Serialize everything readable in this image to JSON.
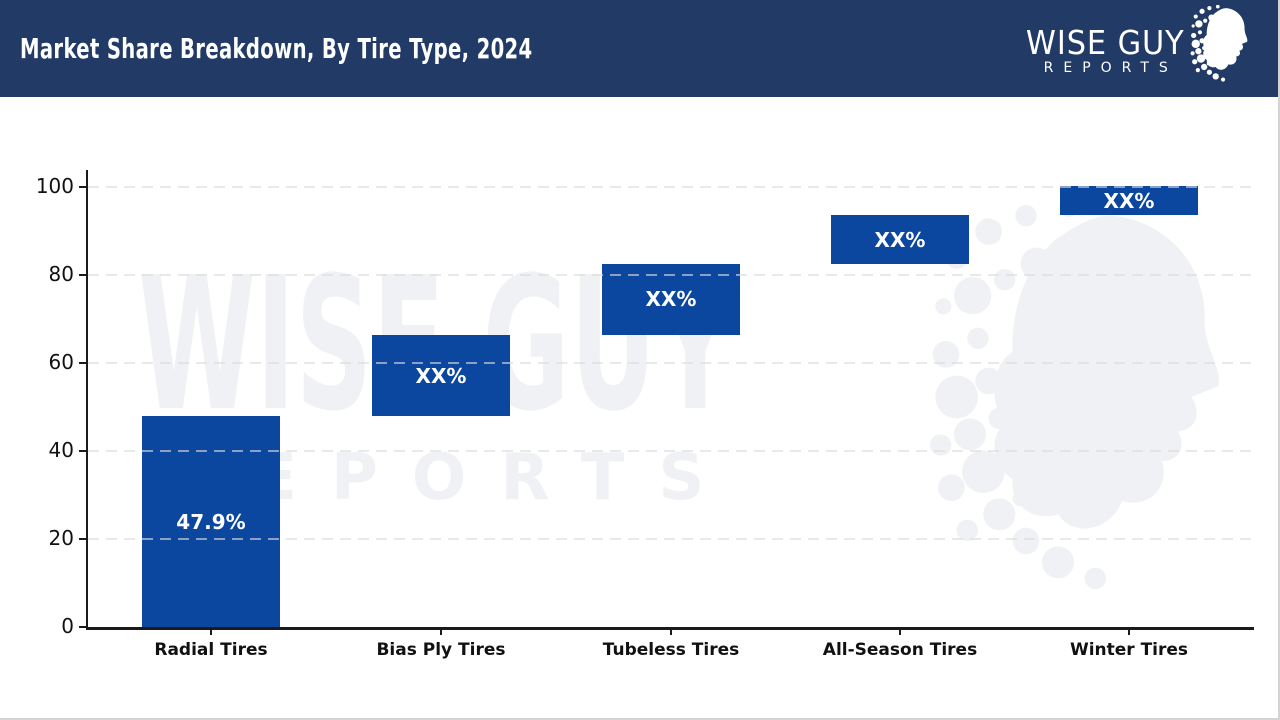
{
  "header": {
    "title": "Market Share Breakdown, By Tire Type, 2024",
    "logo": {
      "line1": "WISE GUY",
      "line2": "REPORTS"
    }
  },
  "watermark": {
    "line1": "WISE GUY",
    "line2": "REPORTS"
  },
  "colors": {
    "header_bg": "#213A66",
    "bar": "#0B469F",
    "axis": "#1a1a1a",
    "grid": "#e2e2e2",
    "watermark": "#f0f1f4",
    "bar_label": "#ffffff"
  },
  "chart_data": {
    "type": "bar",
    "subtype": "waterfall",
    "title": "Market Share Breakdown, By Tire Type, 2024",
    "categories": [
      "Radial Tires",
      "Bias Ply Tires",
      "Tubeless Tires",
      "All-Season Tires",
      "Winter Tires"
    ],
    "segments": [
      {
        "category": "Radial Tires",
        "start": 0,
        "end": 47.9,
        "label": "47.9%"
      },
      {
        "category": "Bias Ply Tires",
        "start": 47.9,
        "end": 66.4,
        "label": "XX%"
      },
      {
        "category": "Tubeless Tires",
        "start": 66.4,
        "end": 82.5,
        "label": "XX%"
      },
      {
        "category": "All-Season Tires",
        "start": 82.5,
        "end": 93.6,
        "label": "XX%"
      },
      {
        "category": "Winter Tires",
        "start": 93.6,
        "end": 100.2,
        "label": "XX%"
      }
    ],
    "yticks": [
      0,
      20,
      40,
      60,
      80,
      100
    ],
    "ylim": [
      0,
      104
    ],
    "xlabel": "",
    "ylabel": "",
    "grid": "dashed horizontal",
    "legend": "none",
    "bar_color": "#0B469F",
    "label_color": "#ffffff"
  }
}
